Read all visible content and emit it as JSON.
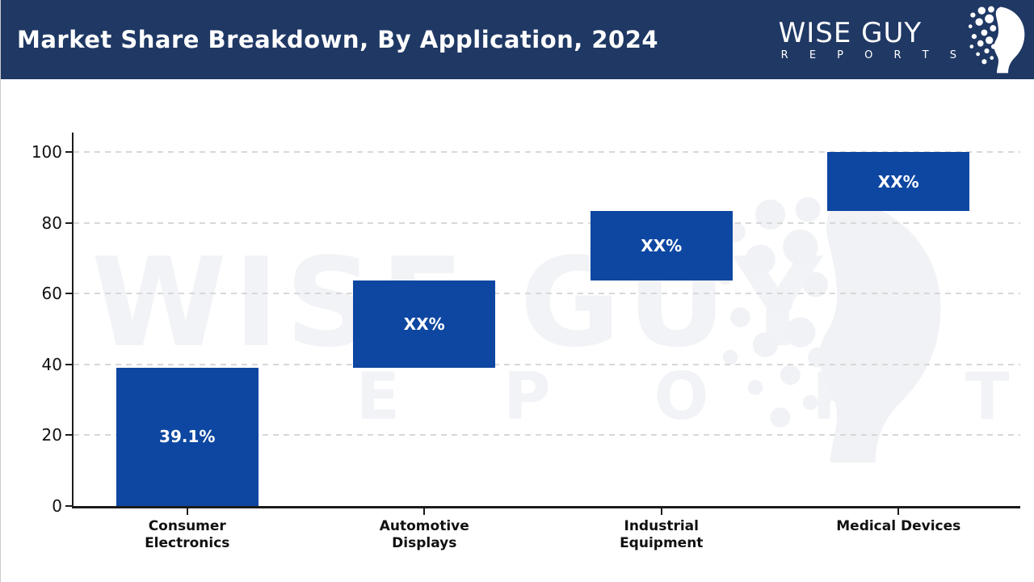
{
  "header": {
    "title": "Market Share Breakdown, By Application, 2024",
    "logo": {
      "line1": "WISE GUY",
      "line2": "R E P O R T S"
    }
  },
  "watermark": {
    "line1": "WISE GUY",
    "line2": "R E P O R T S"
  },
  "colors": {
    "header_bg": "#1f3864",
    "bar": "#0d47a1",
    "bar_label": "#ffffff",
    "gridline": "#d8d8d8",
    "axis": "#1c1c1c",
    "watermark": "#f2f3f6"
  },
  "chart_data": {
    "type": "bar",
    "subtype": "waterfall",
    "title": "Market Share Breakdown, By Application, 2024",
    "categories": [
      "Consumer Electronics",
      "Automotive Displays",
      "Industrial Equipment",
      "Medical Devices"
    ],
    "category_label_lines": [
      [
        "Consumer",
        "Electronics"
      ],
      [
        "Automotive",
        "Displays"
      ],
      [
        "Industrial",
        "Equipment"
      ],
      [
        "Medical Devices"
      ]
    ],
    "segments": [
      {
        "category": "Consumer Electronics",
        "start": 0,
        "end": 39.1,
        "label": "39.1%"
      },
      {
        "category": "Automotive Displays",
        "start": 39.1,
        "end": 63.6,
        "label": "XX%"
      },
      {
        "category": "Industrial Equipment",
        "start": 63.6,
        "end": 83.3,
        "label": "XX%"
      },
      {
        "category": "Medical Devices",
        "start": 83.3,
        "end": 100.0,
        "label": "XX%"
      }
    ],
    "xlabel": "",
    "ylabel": "",
    "yticks": [
      0,
      20,
      40,
      60,
      80,
      100
    ],
    "ylim": [
      0,
      105.5
    ],
    "grid": "horizontal-dashed",
    "legend": "none"
  }
}
